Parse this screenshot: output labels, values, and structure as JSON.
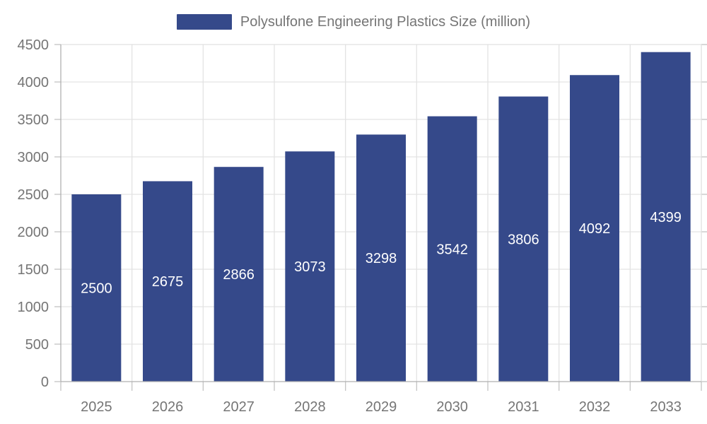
{
  "chart_data": {
    "type": "bar",
    "title": "Polysulfone Engineering Plastics Size (million)",
    "series_name": "Polysulfone Engineering Plastics Size (million)",
    "categories": [
      "2025",
      "2026",
      "2027",
      "2028",
      "2029",
      "2030",
      "2031",
      "2032",
      "2033"
    ],
    "values": [
      2500,
      2675,
      2866,
      3073,
      3298,
      3542,
      3806,
      4092,
      4399
    ],
    "xlabel": "",
    "ylabel": "",
    "ylim": [
      0,
      4500
    ],
    "ytick_step": 500,
    "ytick_labels": [
      "0",
      "500",
      "1000",
      "1500",
      "2000",
      "2500",
      "3000",
      "3500",
      "4000",
      "4500"
    ],
    "grid": true,
    "legend_position": "top",
    "value_labels": "inside-center",
    "colors": {
      "bar": "#35498A",
      "bar_value_label": "#ffffff",
      "axis_text": "#757575",
      "legend_text": "#757575",
      "grid_line": "#e3e3e3",
      "axis_line": "#b0b0b0",
      "plot_border": "#e0e0e0",
      "tick": "#c4c4c4",
      "background": "#ffffff"
    }
  }
}
